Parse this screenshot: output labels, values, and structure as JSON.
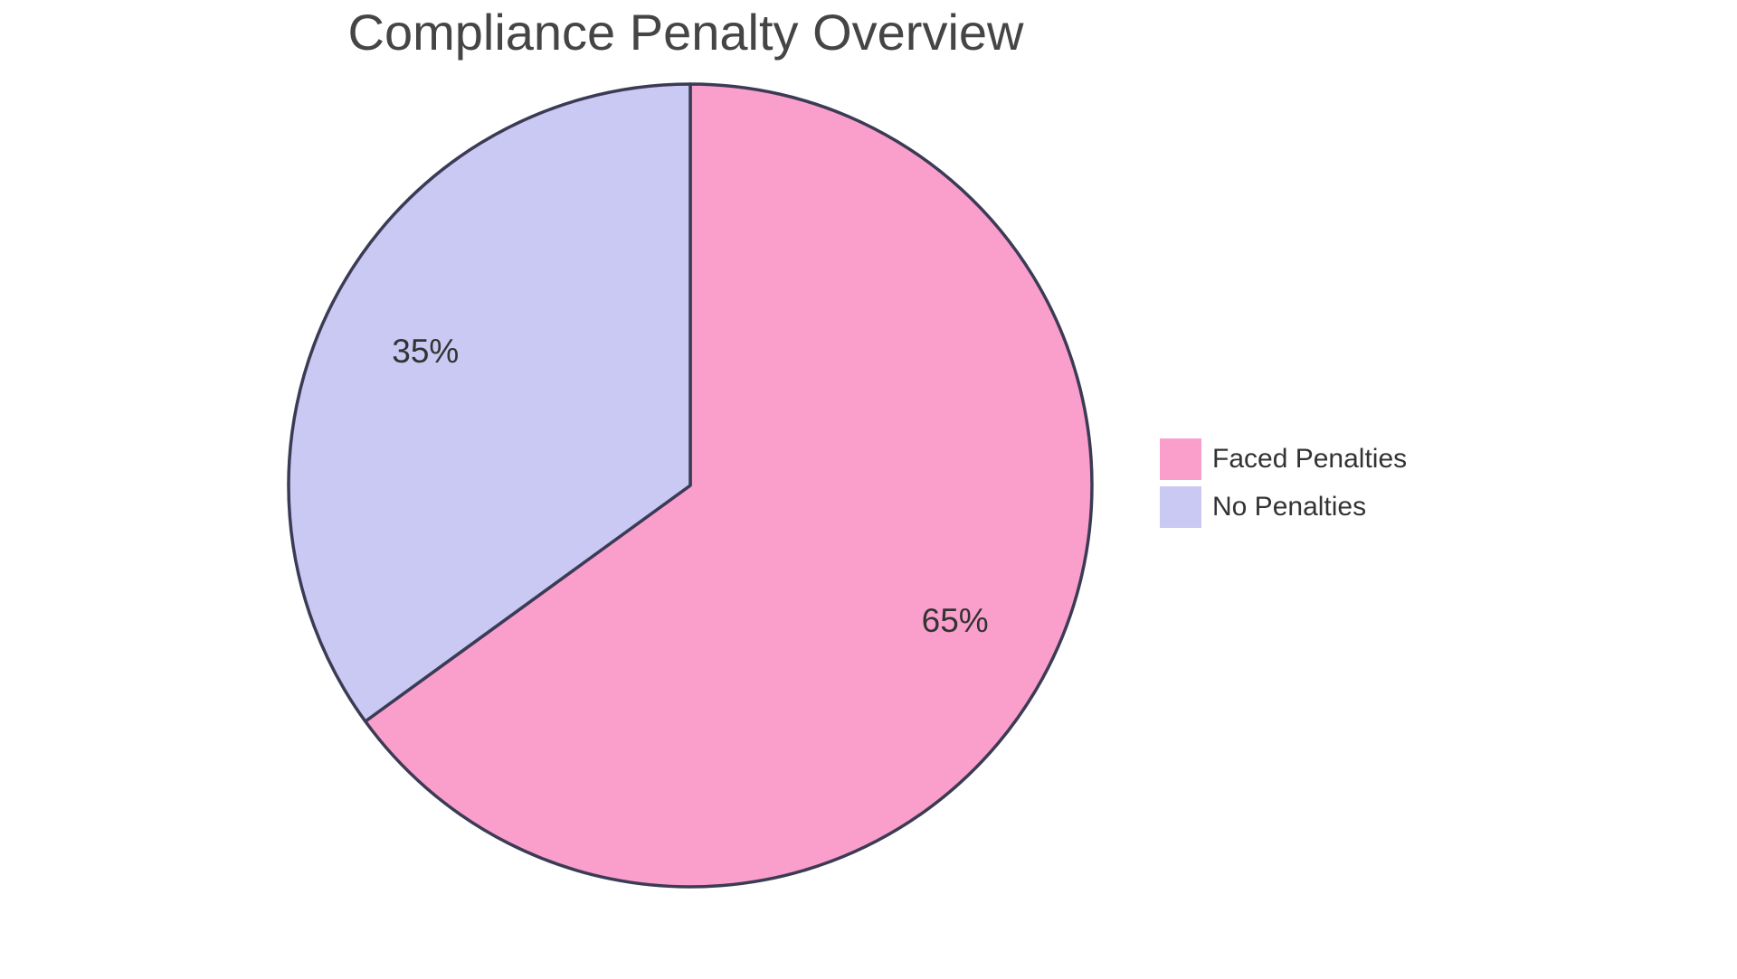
{
  "chart_data": {
    "type": "pie",
    "title": "Compliance Penalty Overview",
    "labels": [
      "Faced Penalties",
      "No Penalties"
    ],
    "values": [
      65,
      35
    ],
    "percent_labels": [
      "65%",
      "35%"
    ],
    "colors": [
      "#FA9FCB",
      "#C9C9F4"
    ],
    "border_color": "#3B3B55",
    "border_width": 3.5,
    "slice_label_color": "#333333",
    "title_color": "#454545",
    "legend_position": "right",
    "start_angle_deg": 0,
    "direction": "clockwise",
    "background": "#FFFFFF"
  },
  "legend": {
    "items": [
      {
        "label": "Faced Penalties",
        "color": "#FA9FCB"
      },
      {
        "label": "No Penalties",
        "color": "#C9C9F4"
      }
    ]
  }
}
